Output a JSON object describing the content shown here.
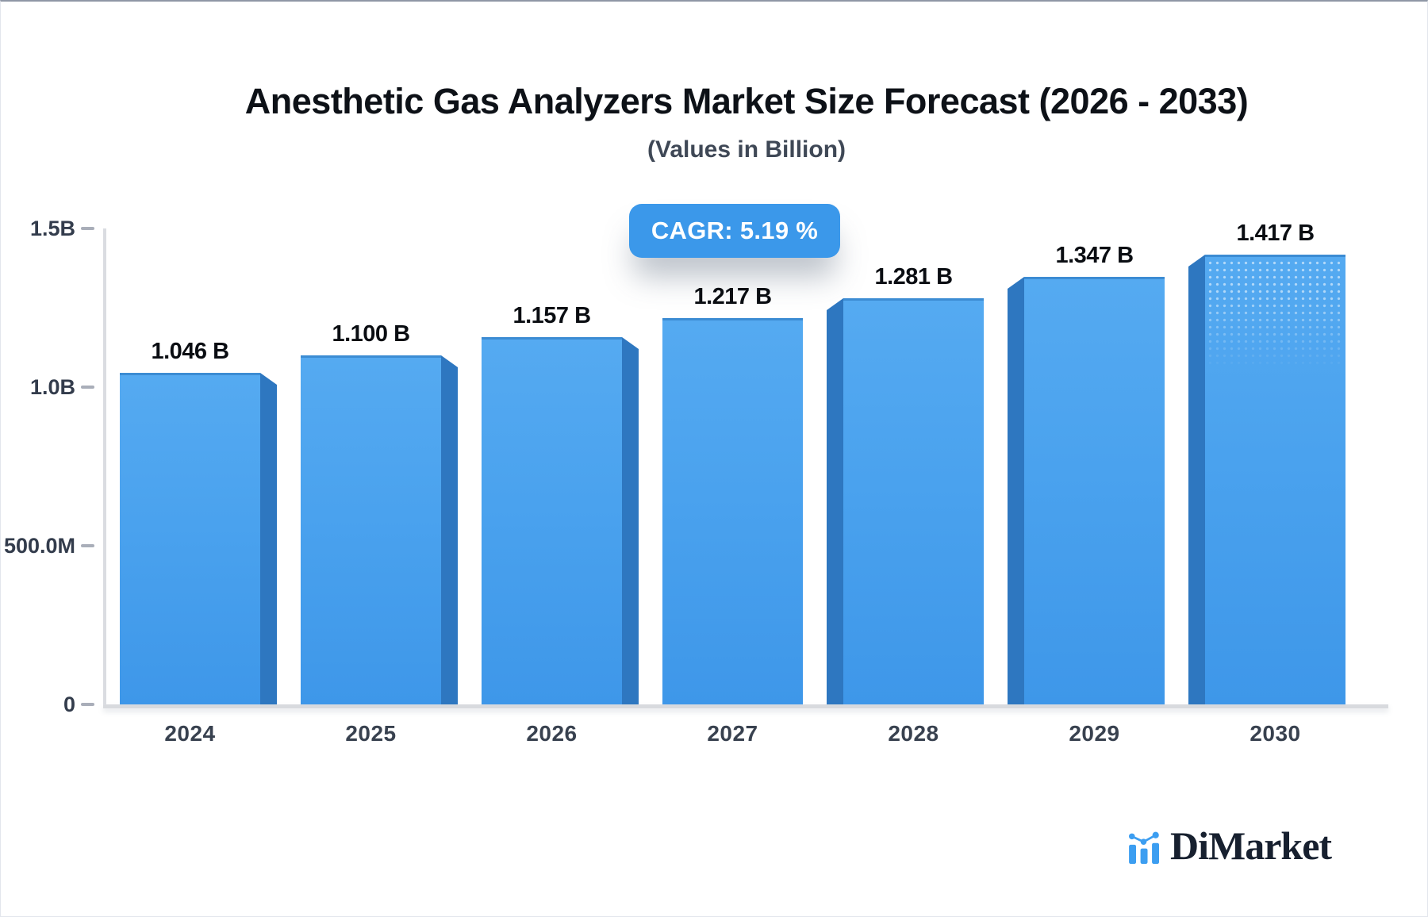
{
  "page": {
    "title": "Anesthetic Gas Analyzers Market Size Forecast (2026 - 2033)",
    "subtitle": "(Values in Billion)"
  },
  "cagr_badge": {
    "label": "CAGR: 5.19 %"
  },
  "brand": {
    "name": "DiMarket",
    "icon": "mini-bar-chart-trend-icon"
  },
  "colors": {
    "bar_front": "#47a0ec",
    "bar_side": "#2e77c0",
    "badge_bg": "#3b98ea",
    "badge_text": "#ffffff",
    "axis_line": "#d8dade",
    "axis_text": "#333c4c",
    "value_text": "#0a0d12",
    "brand_blue": "#3c9ef1",
    "brand_navy": "#17202f"
  },
  "chart_data": {
    "type": "bar",
    "title": "Anesthetic Gas Analyzers Market Size Forecast (2026 - 2033)",
    "subtitle": "(Values in Billion)",
    "categories": [
      "2024",
      "2025",
      "2026",
      "2027",
      "2028",
      "2029",
      "2030"
    ],
    "values": [
      1.046,
      1.1,
      1.157,
      1.217,
      1.281,
      1.347,
      1.417
    ],
    "value_labels": [
      "1.046 B",
      "1.100 B",
      "1.157 B",
      "1.217 B",
      "1.281 B",
      "1.347 B",
      "1.417 B"
    ],
    "y_ticks": [
      {
        "label": "0",
        "value": 0
      },
      {
        "label": "500.0M",
        "value": 0.5
      },
      {
        "label": "1.0B",
        "value": 1.0
      },
      {
        "label": "1.5B",
        "value": 1.5
      }
    ],
    "ylim": [
      0,
      1.5
    ],
    "xlabel": "",
    "ylabel": "",
    "grid": false,
    "legend": false,
    "annotations": [
      "CAGR: 5.19 %"
    ],
    "style_notes": {
      "pseudo_3d": "bars left of center extrude right, bars right of center extrude left, center bar flat",
      "last_bar_texture": "dotted-halftone fading from top"
    }
  }
}
